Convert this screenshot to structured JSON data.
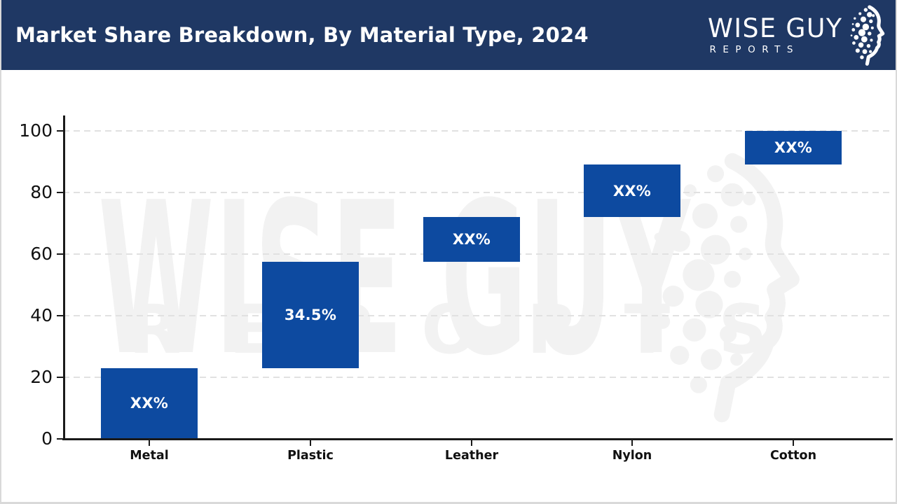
{
  "header": {
    "title": "Market Share Breakdown, By Material Type, 2024",
    "logo": {
      "line1": "WISE GUY",
      "line2": "REPORTS"
    }
  },
  "watermark": {
    "line1": "WISE GUY",
    "line2": "REPORTS"
  },
  "chart_data": {
    "type": "bar",
    "subtype": "waterfall",
    "title": "Market Share Breakdown, By Material Type, 2024",
    "categories": [
      "Metal",
      "Plastic",
      "Leather",
      "Nylon",
      "Cotton"
    ],
    "segments": [
      {
        "category": "Metal",
        "start": 0,
        "end": 23,
        "label": "XX%"
      },
      {
        "category": "Plastic",
        "start": 23,
        "end": 57.5,
        "label": "34.5%"
      },
      {
        "category": "Leather",
        "start": 57.5,
        "end": 72,
        "label": "XX%"
      },
      {
        "category": "Nylon",
        "start": 72,
        "end": 89,
        "label": "XX%"
      },
      {
        "category": "Cotton",
        "start": 89,
        "end": 100,
        "label": "XX%"
      }
    ],
    "yticks": [
      0,
      20,
      40,
      60,
      80,
      100
    ],
    "ylim": [
      0,
      105
    ],
    "xlabel": "",
    "ylabel": "",
    "grid": "horizontal-dashed",
    "legend": "none"
  },
  "colors": {
    "header_bg": "#1f3864",
    "bar": "#0d4aa0",
    "grid": "#e1e1e1",
    "axis": "#1a1a1a",
    "watermark": "#f2f2f2",
    "page_border": "#d9d9d9",
    "bar_label_text": "#ffffff"
  }
}
